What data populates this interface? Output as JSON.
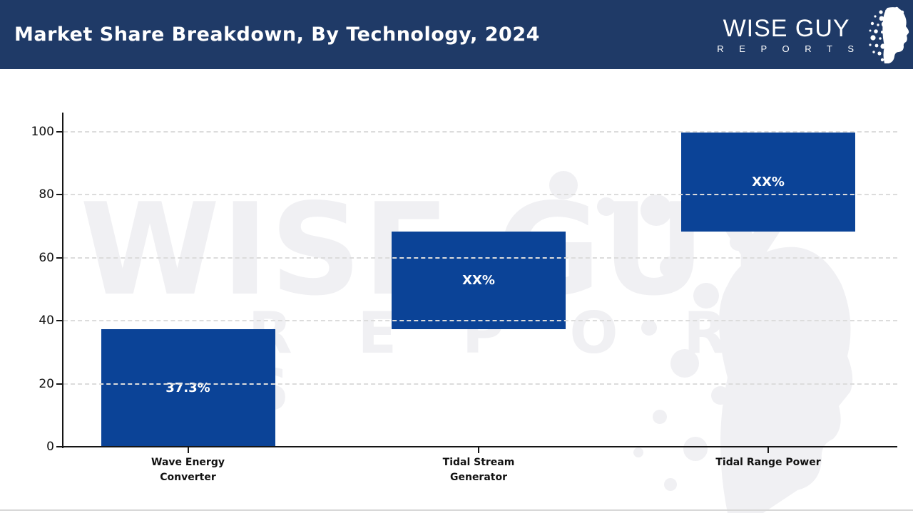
{
  "header": {
    "title": "Market Share Breakdown, By Technology, 2024",
    "brand": {
      "name": "WISE GUY",
      "reports": "R E P O R T S"
    }
  },
  "watermark": {
    "line1": "WISE GUY",
    "line2": "R E P O R T S"
  },
  "chart_data": {
    "type": "bar",
    "subtype": "floating-waterfall",
    "title": "Market Share Breakdown, By Technology, 2024",
    "categories": [
      "Wave Energy Converter",
      "Tidal Stream Generator",
      "Tidal Range Power"
    ],
    "segments": [
      {
        "start": 0,
        "end": 37.3,
        "value": 37.3,
        "label": "37.3%"
      },
      {
        "start": 37.3,
        "end": 68.3,
        "value": 31.0,
        "label": "XX%"
      },
      {
        "start": 68.3,
        "end": 99.7,
        "value": 31.4,
        "label": "XX%"
      }
    ],
    "yticks": [
      0,
      20,
      40,
      60,
      80,
      100
    ],
    "ylim": [
      0,
      106
    ],
    "xlabel": "",
    "ylabel": "",
    "grid": "horizontal-dashed",
    "legend": "none"
  },
  "colors": {
    "navy": "#1f3a67",
    "bar": "#0b4397",
    "grid": "#dcdcdc",
    "watermark": "#f0f0f3"
  }
}
